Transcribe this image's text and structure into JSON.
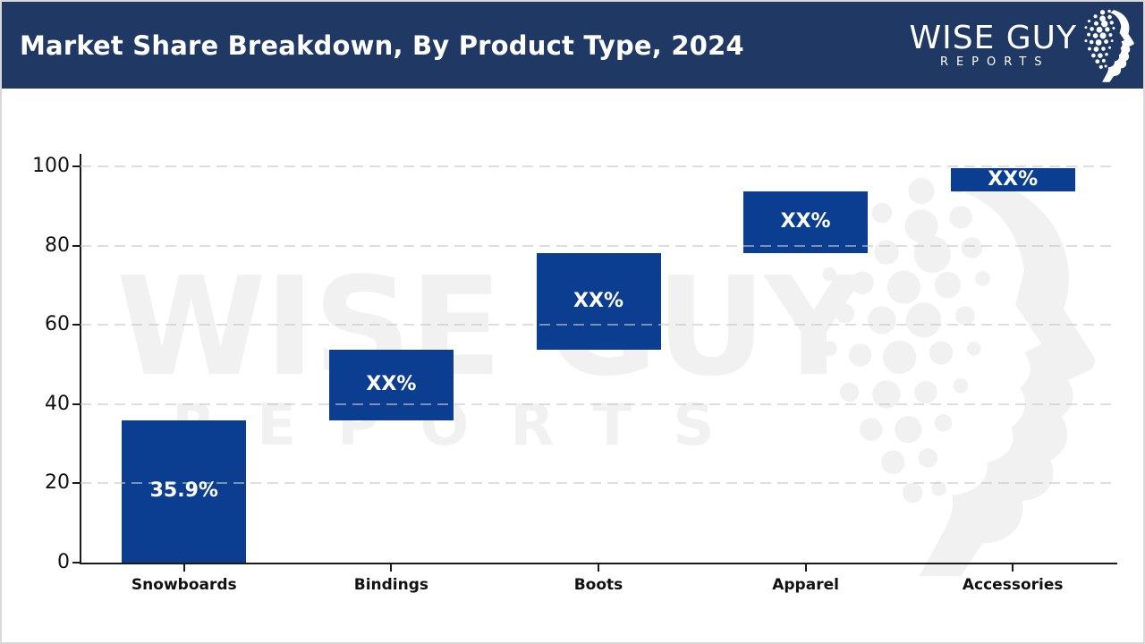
{
  "header": {
    "title": "Market Share Breakdown, By Product Type, 2024"
  },
  "brand": {
    "name_line1": "WISE GUY",
    "name_line2": "REPORTS",
    "head_icon": "dotted-head-profile-icon"
  },
  "watermark": {
    "line1": "WISE GUY",
    "line2": "REPORTS"
  },
  "colors": {
    "header_bg": "#1F3864",
    "bar_fill": "#0B3D91",
    "bar_label_text": "#FFFFFF",
    "axis": "#1A1A1A",
    "tick_label": "#111111",
    "watermark": "#F1F1F1",
    "grid": "#CCCCCC"
  },
  "chart_data": {
    "type": "bar",
    "subtype": "waterfall",
    "title": "Market Share Breakdown, By Product Type, 2024",
    "xlabel": "",
    "ylabel": "",
    "categories": [
      "Snowboards",
      "Bindings",
      "Boots",
      "Apparel",
      "Accessories"
    ],
    "segments": [
      {
        "category": "Snowboards",
        "start": 0,
        "end": 35.9,
        "label": "35.9%"
      },
      {
        "category": "Bindings",
        "start": 35.9,
        "end": 53.8,
        "label": "XX%"
      },
      {
        "category": "Boots",
        "start": 53.8,
        "end": 78.2,
        "label": "XX%"
      },
      {
        "category": "Apparel",
        "start": 78.2,
        "end": 93.7,
        "label": "XX%"
      },
      {
        "category": "Accessories",
        "start": 93.7,
        "end": 99.6,
        "label": "XX%"
      }
    ],
    "y_ticks": [
      0,
      20,
      40,
      60,
      80,
      100
    ],
    "ylim": [
      0,
      106
    ],
    "grid": "horizontal-dashed-above-bars",
    "legend": null
  }
}
